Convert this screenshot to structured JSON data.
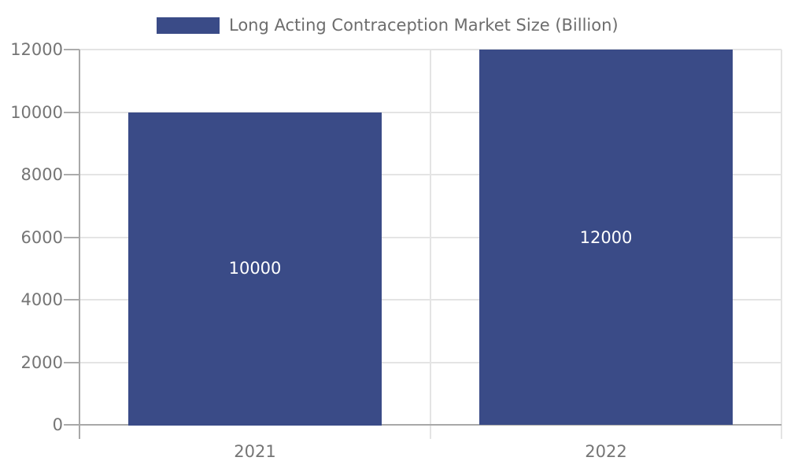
{
  "chart_data": {
    "type": "bar",
    "title": "Long Acting Contraception Market Size (Billion)",
    "categories": [
      "2021",
      "2022"
    ],
    "values": [
      10000,
      12000
    ],
    "bar_labels": [
      "10000",
      "12000"
    ],
    "xlabel": "",
    "ylabel": "",
    "ylim": [
      0,
      12000
    ],
    "ytick_step": 2000,
    "ytick_labels": [
      "0",
      "2000",
      "4000",
      "6000",
      "8000",
      "10000",
      "12000"
    ],
    "legend_position": "top",
    "grid": true,
    "colors": {
      "bar": "#3A4B87",
      "bar_label": "#FFFFFF",
      "axis_line": "#A8A8A8",
      "tick": "#ACACAC",
      "gridline": "#E4E4E4",
      "axis_label": "#757575",
      "legend_text": "#6D6D6D",
      "background": "#FFFFFF"
    }
  }
}
